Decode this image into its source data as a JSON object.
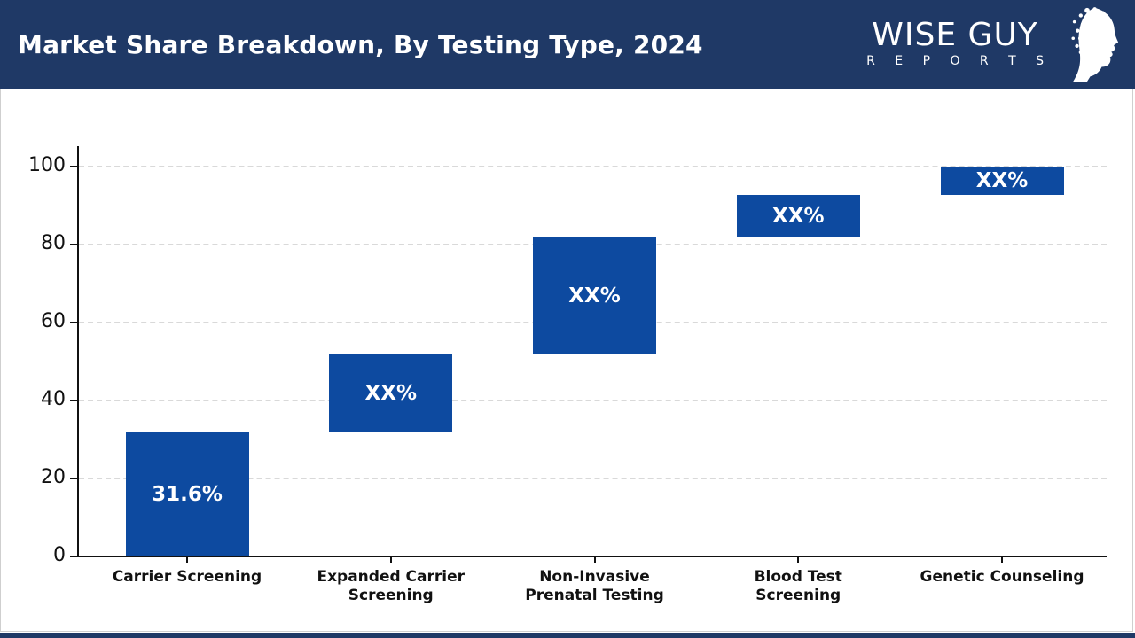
{
  "header": {
    "title": "Market Share Breakdown, By Testing Type, 2024",
    "logo": {
      "primary": "WISE GUY",
      "secondary": "REPORTS"
    }
  },
  "watermark": {
    "primary": "WISE GUY",
    "secondary": "REPORTS"
  },
  "colors": {
    "header_bg": "#1f3966",
    "footer_bg": "#1f3966",
    "bar": "#0d4aa0",
    "grid": "#d9d9d9",
    "axis": "#111111",
    "bar_label": "#ffffff",
    "watermark": "#f1f1f1"
  },
  "chart_data": {
    "type": "bar",
    "subtype": "waterfall",
    "title": "Market Share Breakdown, By Testing Type, 2024",
    "xlabel": "",
    "ylabel": "",
    "unit": "%",
    "ylim": [
      0,
      105
    ],
    "yticks": [
      0,
      20,
      40,
      60,
      80,
      100
    ],
    "grid": "horizontal-dashed",
    "legend": "none",
    "categories": [
      "Carrier Screening",
      "Expanded Carrier Screening",
      "Non-Invasive Prenatal Testing",
      "Blood Test Screening",
      "Genetic Counseling"
    ],
    "category_lines": [
      [
        "Carrier Screening"
      ],
      [
        "Expanded Carrier",
        "Screening"
      ],
      [
        "Non-Invasive",
        "Prenatal Testing"
      ],
      [
        "Blood Test",
        "Screening"
      ],
      [
        "Genetic Counseling"
      ]
    ],
    "segments": [
      {
        "category": "Carrier Screening",
        "start": 0,
        "end": 31.6,
        "label": "31.6%"
      },
      {
        "category": "Expanded Carrier Screening",
        "start": 31.6,
        "end": 51.6,
        "label": "XX%"
      },
      {
        "category": "Non-Invasive Prenatal Testing",
        "start": 51.6,
        "end": 81.6,
        "label": "XX%"
      },
      {
        "category": "Blood Test Screening",
        "start": 81.6,
        "end": 92.6,
        "label": "XX%"
      },
      {
        "category": "Genetic Counseling",
        "start": 92.6,
        "end": 100,
        "label": "XX%"
      }
    ]
  }
}
